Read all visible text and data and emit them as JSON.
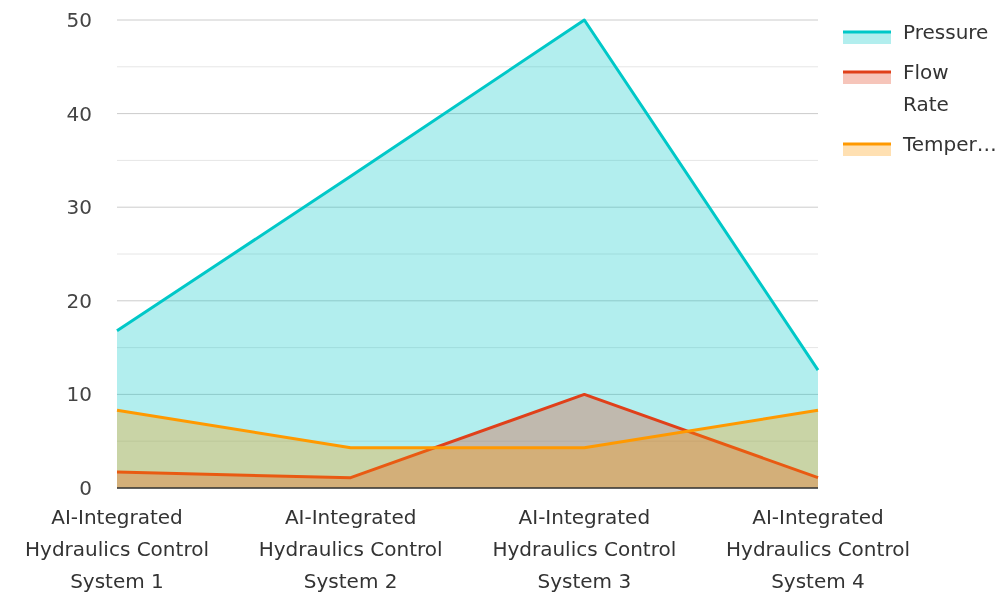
{
  "chart_data": {
    "type": "area",
    "categories": [
      "AI-Integrated Hydraulics Control System 1",
      "AI-Integrated Hydraulics Control System 2",
      "AI-Integrated Hydraulics Control System 3",
      "AI-Integrated Hydraulics Control System 4"
    ],
    "series": [
      {
        "name": "Pressure",
        "color": "#00c8c8",
        "values": [
          16.8,
          33.3,
          50,
          12.6
        ]
      },
      {
        "name": "Flow Rate",
        "color": "#e0401a",
        "values": [
          1.7,
          1.1,
          10,
          1.1
        ]
      },
      {
        "name": "Temper…",
        "color": "#ff9900",
        "values": [
          8.3,
          4.3,
          4.3,
          8.3
        ]
      }
    ],
    "ylim": [
      0,
      50
    ],
    "yticks": [
      0,
      10,
      20,
      30,
      40,
      50
    ],
    "grid": "y",
    "legend": "top right"
  }
}
